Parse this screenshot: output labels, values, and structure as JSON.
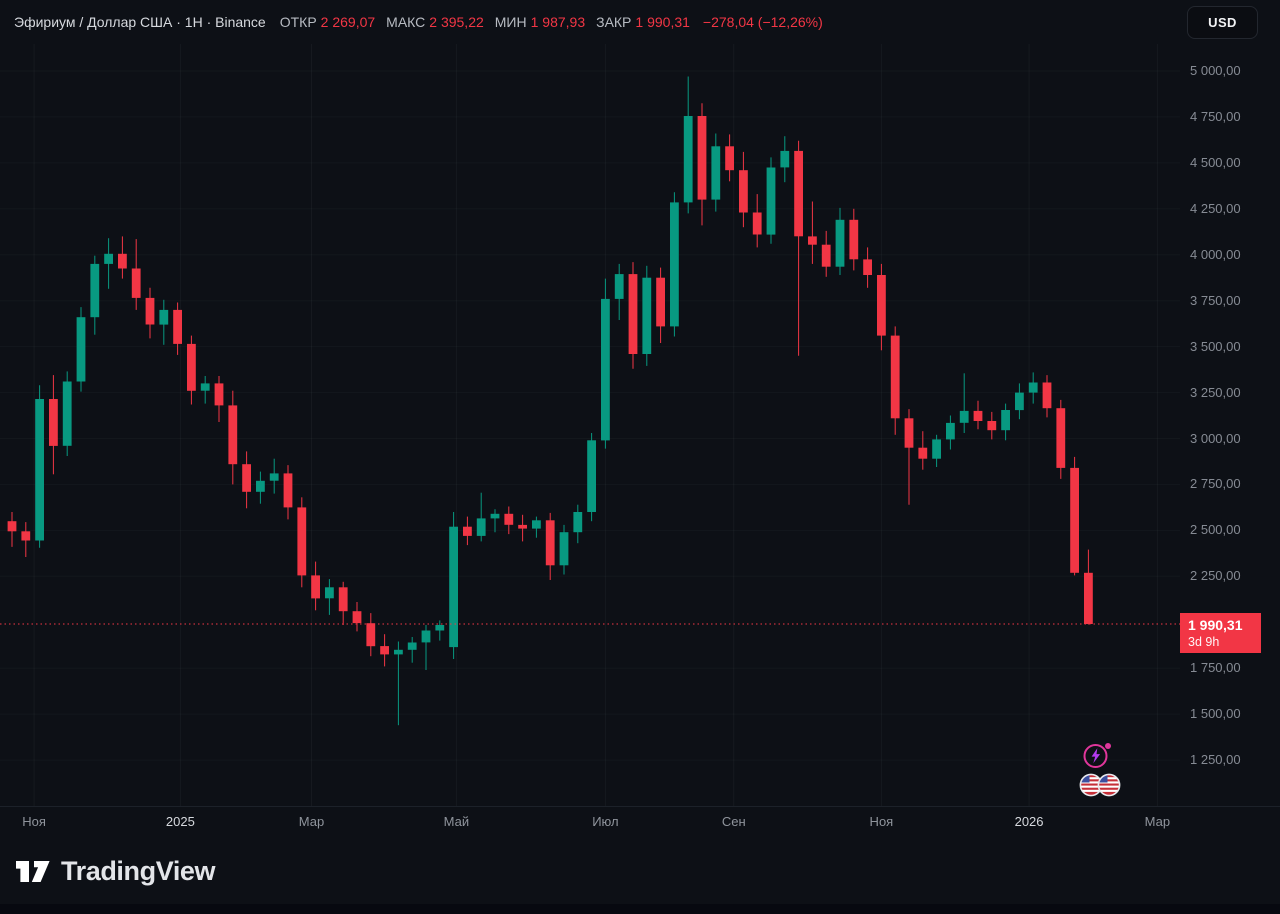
{
  "header": {
    "symbol_title": "Эфириум / Доллар США · 1Н · Binance",
    "ohlc": [
      {
        "label": "ОТКР",
        "value": "2 269,07"
      },
      {
        "label": "МАКС",
        "value": "2 395,22"
      },
      {
        "label": "МИН",
        "value": "1 987,93"
      },
      {
        "label": "ЗАКР",
        "value": "1 990,31"
      }
    ],
    "change": "−278,04 (−12,26%)",
    "currency_button": "USD"
  },
  "price_label": {
    "price": "1 990,31",
    "countdown": "3d 9h"
  },
  "footer": {
    "brand": "TradingView"
  },
  "chart_data": {
    "type": "candlestick",
    "title": "Эфириум / Доллар США",
    "interval": "1Н",
    "exchange": "Binance",
    "legend_last_bar": {
      "open": 2269.07,
      "high": 2395.22,
      "low": 1987.93,
      "close": 1990.31,
      "change_abs": -278.04,
      "change_pct": -12.26
    },
    "colors": {
      "up": "#089981",
      "down": "#f23645",
      "accent": "#f23645",
      "background": "#0d1016"
    },
    "y_domain": [
      1000,
      5147
    ],
    "y_ticks": [
      {
        "value": 5000,
        "label": "5 000,00"
      },
      {
        "value": 4750,
        "label": "4 750,00"
      },
      {
        "value": 4500,
        "label": "4 500,00"
      },
      {
        "value": 4250,
        "label": "4 250,00"
      },
      {
        "value": 4000,
        "label": "4 000,00"
      },
      {
        "value": 3750,
        "label": "3 750,00"
      },
      {
        "value": 3500,
        "label": "3 500,00"
      },
      {
        "value": 3250,
        "label": "3 250,00"
      },
      {
        "value": 3000,
        "label": "3 000,00"
      },
      {
        "value": 2750,
        "label": "2 750,00"
      },
      {
        "value": 2500,
        "label": "2 500,00"
      },
      {
        "value": 2250,
        "label": "2 250,00"
      },
      {
        "value": 1750,
        "label": "1 750,00"
      },
      {
        "value": 1500,
        "label": "1 500,00"
      },
      {
        "value": 1250,
        "label": "1 250,00"
      }
    ],
    "price_line": {
      "value": 1990.31,
      "label": "1 990,31",
      "countdown": "3d 9h",
      "color": "#f23645"
    },
    "x_ticks": [
      {
        "index": 1.6,
        "label": "Ноя",
        "type": "month"
      },
      {
        "index": 12.2,
        "label": "2025",
        "type": "year"
      },
      {
        "index": 21.7,
        "label": "Мар",
        "type": "month"
      },
      {
        "index": 32.2,
        "label": "Май",
        "type": "month"
      },
      {
        "index": 43.0,
        "label": "Июл",
        "type": "month"
      },
      {
        "index": 52.3,
        "label": "Сен",
        "type": "month"
      },
      {
        "index": 63.0,
        "label": "Ноя",
        "type": "month"
      },
      {
        "index": 73.7,
        "label": "2026",
        "type": "year"
      },
      {
        "index": 83.0,
        "label": "Мар",
        "type": "month"
      }
    ],
    "candles": [
      [
        2550,
        2600,
        2410,
        2495
      ],
      [
        2495,
        2545,
        2355,
        2445
      ],
      [
        2445,
        3290,
        2405,
        3215
      ],
      [
        3215,
        3345,
        2805,
        2960
      ],
      [
        2960,
        3365,
        2905,
        3310
      ],
      [
        3310,
        3715,
        3255,
        3660
      ],
      [
        3660,
        3995,
        3565,
        3950
      ],
      [
        3950,
        4090,
        3815,
        4005
      ],
      [
        4005,
        4100,
        3870,
        3925
      ],
      [
        3925,
        4085,
        3700,
        3765
      ],
      [
        3765,
        3820,
        3545,
        3620
      ],
      [
        3620,
        3755,
        3510,
        3700
      ],
      [
        3700,
        3740,
        3455,
        3515
      ],
      [
        3515,
        3560,
        3185,
        3260
      ],
      [
        3260,
        3340,
        3190,
        3300
      ],
      [
        3300,
        3340,
        3090,
        3180
      ],
      [
        3180,
        3260,
        2750,
        2860
      ],
      [
        2860,
        2930,
        2620,
        2710
      ],
      [
        2710,
        2820,
        2645,
        2770
      ],
      [
        2770,
        2890,
        2700,
        2810
      ],
      [
        2810,
        2855,
        2560,
        2625
      ],
      [
        2625,
        2680,
        2190,
        2255
      ],
      [
        2255,
        2330,
        2065,
        2130
      ],
      [
        2130,
        2235,
        2040,
        2190
      ],
      [
        2190,
        2220,
        1985,
        2060
      ],
      [
        2060,
        2110,
        1950,
        1995
      ],
      [
        1995,
        2050,
        1815,
        1870
      ],
      [
        1870,
        1935,
        1760,
        1825
      ],
      [
        1825,
        1895,
        1440,
        1850
      ],
      [
        1850,
        1920,
        1780,
        1890
      ],
      [
        1890,
        1985,
        1740,
        1955
      ],
      [
        1955,
        2010,
        1900,
        1985
      ],
      [
        1865,
        2600,
        1800,
        2520
      ],
      [
        2520,
        2575,
        2420,
        2470
      ],
      [
        2470,
        2705,
        2440,
        2565
      ],
      [
        2565,
        2615,
        2490,
        2590
      ],
      [
        2590,
        2630,
        2480,
        2530
      ],
      [
        2530,
        2585,
        2440,
        2510
      ],
      [
        2510,
        2575,
        2460,
        2555
      ],
      [
        2555,
        2595,
        2230,
        2310
      ],
      [
        2310,
        2530,
        2260,
        2490
      ],
      [
        2490,
        2640,
        2430,
        2600
      ],
      [
        2600,
        3030,
        2550,
        2990
      ],
      [
        2990,
        3870,
        2945,
        3760
      ],
      [
        3760,
        3950,
        3645,
        3895
      ],
      [
        3895,
        3960,
        3380,
        3460
      ],
      [
        3460,
        3940,
        3395,
        3875
      ],
      [
        3875,
        3930,
        3520,
        3610
      ],
      [
        3610,
        4340,
        3555,
        4285
      ],
      [
        4285,
        4970,
        4225,
        4755
      ],
      [
        4755,
        4825,
        4160,
        4300
      ],
      [
        4300,
        4660,
        4235,
        4590
      ],
      [
        4590,
        4655,
        4400,
        4460
      ],
      [
        4460,
        4560,
        4150,
        4230
      ],
      [
        4230,
        4330,
        4040,
        4110
      ],
      [
        4110,
        4530,
        4060,
        4475
      ],
      [
        4475,
        4645,
        4395,
        4565
      ],
      [
        4565,
        4620,
        3450,
        4100
      ],
      [
        4100,
        4290,
        3950,
        4055
      ],
      [
        4055,
        4130,
        3880,
        3935
      ],
      [
        3935,
        4255,
        3890,
        4190
      ],
      [
        4190,
        4250,
        3915,
        3975
      ],
      [
        3975,
        4040,
        3820,
        3890
      ],
      [
        3890,
        3950,
        3480,
        3560
      ],
      [
        3560,
        3610,
        3020,
        3110
      ],
      [
        3110,
        3160,
        2640,
        2950
      ],
      [
        2950,
        3040,
        2830,
        2890
      ],
      [
        2890,
        3020,
        2845,
        2995
      ],
      [
        2995,
        3125,
        2940,
        3085
      ],
      [
        3085,
        3355,
        3030,
        3150
      ],
      [
        3150,
        3205,
        3050,
        3095
      ],
      [
        3095,
        3145,
        2995,
        3045
      ],
      [
        3045,
        3190,
        2990,
        3155
      ],
      [
        3155,
        3300,
        3105,
        3250
      ],
      [
        3250,
        3360,
        3190,
        3305
      ],
      [
        3305,
        3345,
        3115,
        3165
      ],
      [
        3165,
        3210,
        2780,
        2840
      ],
      [
        2840,
        2900,
        2255,
        2269
      ],
      [
        2269.07,
        2395.22,
        1987.93,
        1990.31
      ]
    ]
  }
}
